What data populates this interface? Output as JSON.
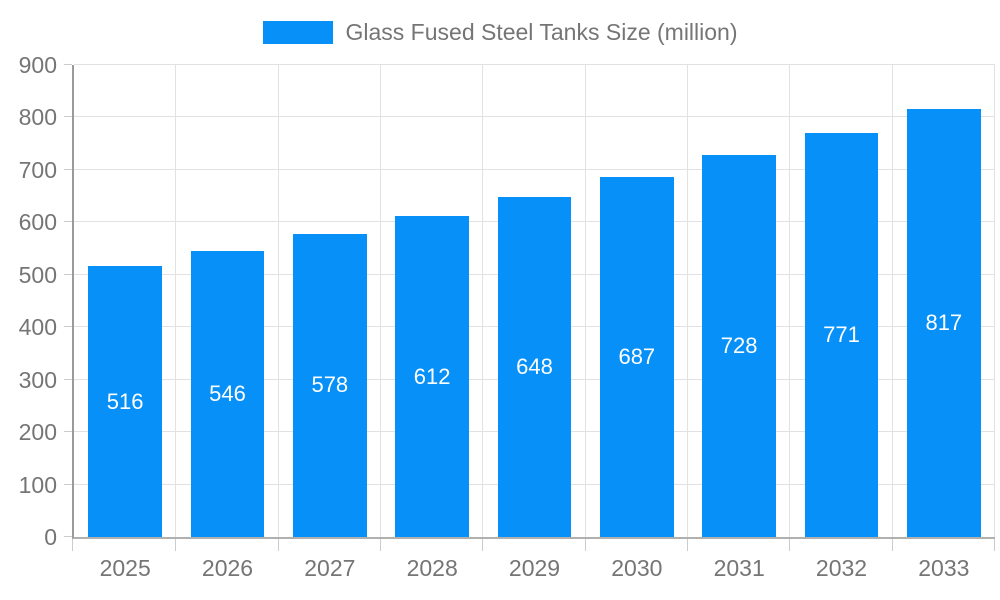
{
  "legend": {
    "label": "Glass Fused Steel Tanks Size (million)"
  },
  "chart_data": {
    "type": "bar",
    "title": "Glass Fused Steel Tanks Size (million)",
    "series_name": "Glass Fused Steel Tanks Size (million)",
    "categories": [
      "2025",
      "2026",
      "2027",
      "2028",
      "2029",
      "2030",
      "2031",
      "2032",
      "2033"
    ],
    "values": [
      516,
      546,
      578,
      612,
      648,
      687,
      728,
      771,
      817
    ],
    "value_labels": [
      "516",
      "546",
      "578",
      "612",
      "648",
      "687",
      "728",
      "771",
      "817"
    ],
    "xlabel": "",
    "ylabel": "",
    "ylim": [
      0,
      900
    ],
    "ytick_step": 100,
    "ytick_labels": [
      "0",
      "100",
      "200",
      "300",
      "400",
      "500",
      "600",
      "700",
      "800",
      "900"
    ],
    "grid": true,
    "legend_position": "top-center",
    "bar_width_fraction": 0.72,
    "colors": {
      "bar": "#0690f8",
      "grid": "#e2e2e2",
      "tick": "#cccccc",
      "axis_y": "#9a9a9a",
      "axis_x": "#b0b0b0",
      "axis_label_text": "#757575",
      "legend_text": "#757575",
      "value_label_text": "#ffffff",
      "background": "#ffffff"
    }
  }
}
